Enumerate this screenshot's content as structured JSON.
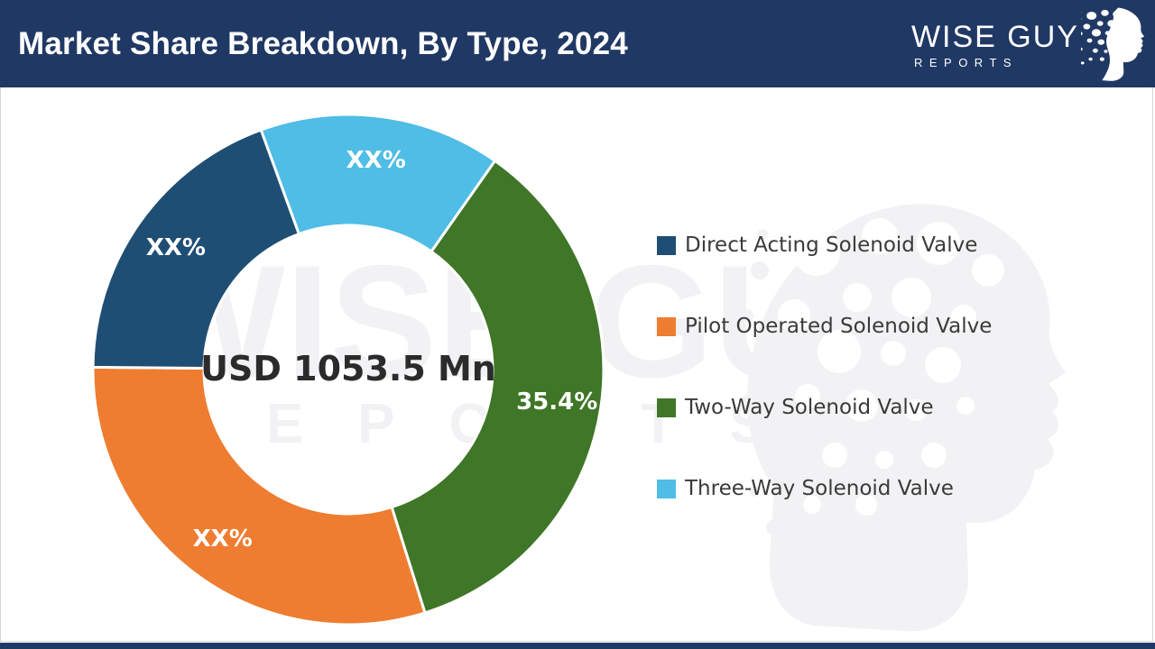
{
  "header": {
    "title": "Market Share Breakdown, By Type, 2024",
    "bg_color": "#203864",
    "logo": {
      "line1": "WISE GUY",
      "line2": "REPORTS"
    }
  },
  "watermark": {
    "line1": "WISE GUY",
    "line2": "REPORTS"
  },
  "chart_data": {
    "type": "pie",
    "subtype": "donut",
    "title": "Market Share Breakdown, By Type, 2024",
    "center_label": "USD 1053.5 Mn",
    "legend_position": "right",
    "start_angle_deg_clockwise_from_top": -20,
    "segments": [
      {
        "name": "Three-Way Solenoid Valve",
        "value_pct": 15.3,
        "label": "XX%",
        "color": "#4fbde6"
      },
      {
        "name": "Two-Way Solenoid Valve",
        "value_pct": 35.4,
        "label": "35.4%",
        "color": "#3f7627"
      },
      {
        "name": "Pilot Operated Solenoid Valve",
        "value_pct": 30.0,
        "label": "XX%",
        "color": "#ee7d31"
      },
      {
        "name": "Direct Acting Solenoid Valve",
        "value_pct": 19.3,
        "label": "XX%",
        "color": "#1f4e74"
      }
    ],
    "legend": [
      {
        "label": "Direct Acting Solenoid Valve",
        "color": "#1f4e74"
      },
      {
        "label": "Pilot Operated Solenoid Valve",
        "color": "#ee7d31"
      },
      {
        "label": "Two-Way Solenoid Valve",
        "color": "#3f7627"
      },
      {
        "label": "Three-Way Solenoid Valve",
        "color": "#4fbde6"
      }
    ]
  }
}
